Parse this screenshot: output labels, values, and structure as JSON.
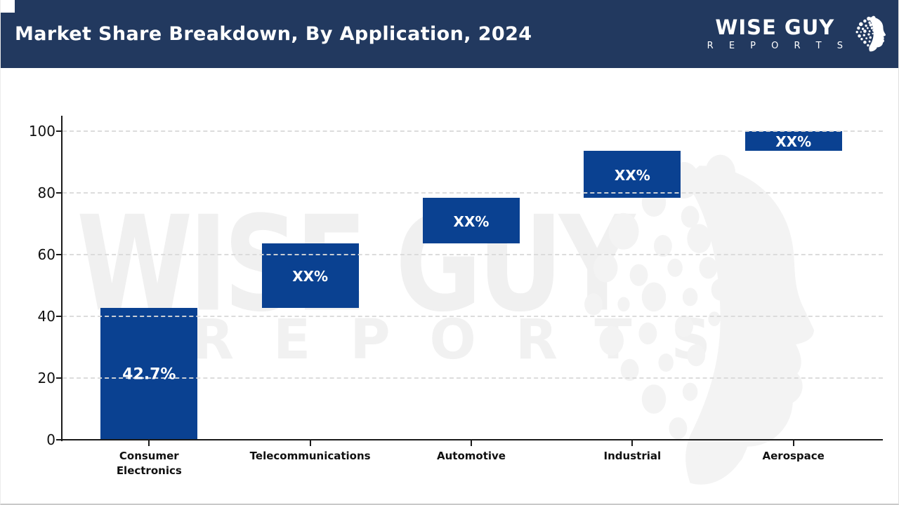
{
  "header": {
    "title": "Market Share Breakdown, By Application, 2024",
    "logo": {
      "line1": "WISE GUY",
      "line2": "R E P O R T S"
    }
  },
  "watermark": {
    "line1": "WISE GUY",
    "line2": "REPORTS"
  },
  "colors": {
    "header_bg": "#22395f",
    "bar": "#0a4191",
    "bar_label": "#ffffff",
    "axis": "#1a1a1a",
    "gridline": "#dadada",
    "watermark": "#f1f1f1"
  },
  "chart_data": {
    "type": "waterfall",
    "title": "Market Share Breakdown, By Application, 2024",
    "categories": [
      "Consumer Electronics",
      "Telecommunications",
      "Automotive",
      "Industrial",
      "Aerospace"
    ],
    "categories_display": [
      [
        "Consumer",
        "Electronics"
      ],
      [
        "Telecommunications"
      ],
      [
        "Automotive"
      ],
      [
        "Industrial"
      ],
      [
        "Aerospace"
      ]
    ],
    "segments": [
      {
        "category": "Consumer Electronics",
        "start": 0,
        "end": 42.7,
        "label": "42.7%"
      },
      {
        "category": "Telecommunications",
        "start": 42.7,
        "end": 63.6,
        "label": "XX%"
      },
      {
        "category": "Automotive",
        "start": 63.6,
        "end": 78.4,
        "label": "XX%"
      },
      {
        "category": "Industrial",
        "start": 78.4,
        "end": 93.6,
        "label": "XX%"
      },
      {
        "category": "Aerospace",
        "start": 93.6,
        "end": 100,
        "label": "XX%"
      }
    ],
    "xlabel": "",
    "ylabel": "",
    "ylim": [
      0,
      100
    ],
    "yticks": [
      0,
      20,
      40,
      60,
      80,
      100
    ],
    "grid": "horizontal-dashed",
    "legend": "none",
    "bar_color": "#0a4191",
    "value_label_color": "#ffffff"
  }
}
